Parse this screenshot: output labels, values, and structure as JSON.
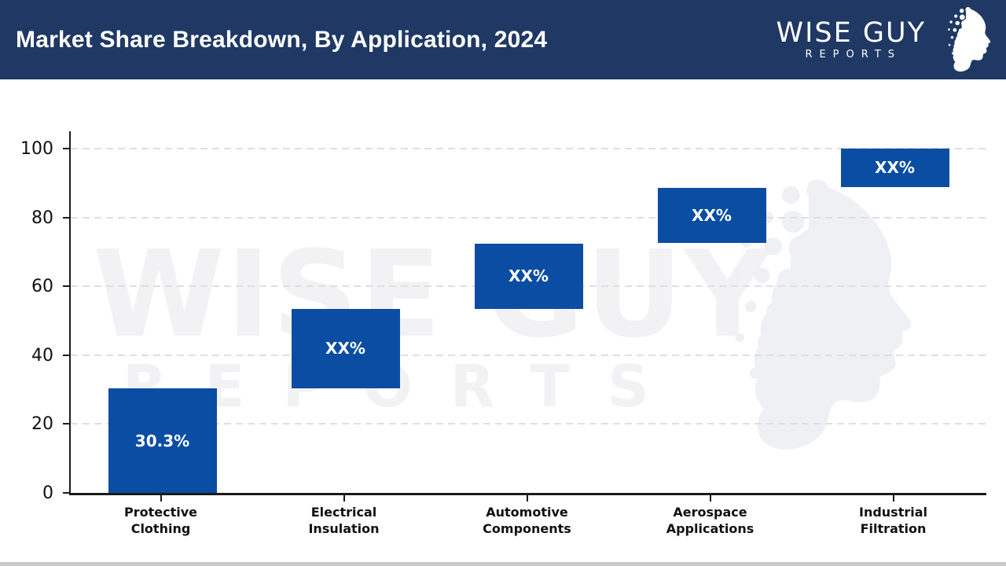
{
  "header": {
    "title": "Market Share Breakdown, By Application, 2024",
    "logo": {
      "line1": "WISE GUY",
      "line2": "REPORTS"
    }
  },
  "watermark": {
    "line1": "WISE GUY",
    "line2": "REPORTS"
  },
  "colors": {
    "header_bg": "#1f3864",
    "bar_blue": "#0b4da2",
    "bar_label_white": "#ffffff",
    "gridline_gray": "#dfdfdf",
    "axis_black": "#1a1a1a",
    "watermark_gray": "#f2f2f4",
    "footer_strip_gray": "#c9c9c9"
  },
  "chart_data": {
    "type": "bar",
    "variant": "floating-waterfall-segments",
    "title": "Market Share Breakdown, By Application, 2024",
    "xlabel": "",
    "ylabel": "",
    "ylim": [
      0,
      105
    ],
    "y_ticks": [
      0,
      20,
      40,
      60,
      80,
      100
    ],
    "grid": "horizontal-dashed",
    "legend": "none",
    "categories": [
      "Protective Clothing",
      "Electrical Insulation",
      "Automotive Components",
      "Aerospace Applications",
      "Industrial Filtration"
    ],
    "bars": [
      {
        "category": "Protective Clothing",
        "start": 0,
        "end": 30.3,
        "label": "30.3%"
      },
      {
        "category": "Electrical Insulation",
        "start": 30.4,
        "end": 53.4,
        "label": "XX%"
      },
      {
        "category": "Automotive Components",
        "start": 53.5,
        "end": 72.3,
        "label": "XX%"
      },
      {
        "category": "Aerospace Applications",
        "start": 72.6,
        "end": 88.6,
        "label": "XX%"
      },
      {
        "category": "Industrial Filtration",
        "start": 88.9,
        "end": 100,
        "label": "XX%"
      }
    ]
  }
}
